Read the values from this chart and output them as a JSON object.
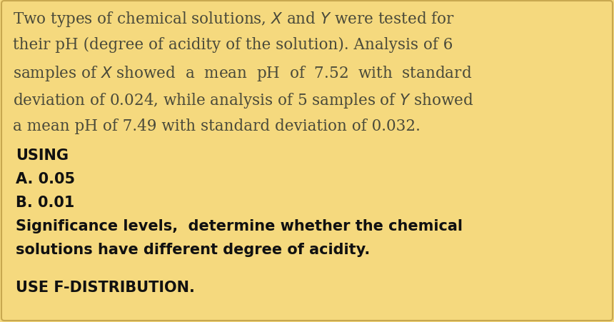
{
  "background_color": "#F5D97E",
  "border_color": "#C8A850",
  "text_color": "#4a4a3a",
  "bold_color": "#111111",
  "para_lines": [
    "Two types of chemical solutions, $\\it{X}$ and $\\it{Y}$ were tested for",
    "their pH (degree of acidity of the solution). Analysis of 6",
    "samples of $\\it{X}$ showed  a  mean  pH  of  7.52  with  standard",
    "deviation of 0.024, while analysis of 5 samples of $\\it{Y}$ showed",
    "a mean pH of 7.49 with standard deviation of 0.032."
  ],
  "using_label": "USING",
  "option_a": "A. 0.05",
  "option_b": "B. 0.01",
  "sig_line1": "Significance levels,  determine whether the chemical",
  "sig_line2": "solutions have different degree of acidity.",
  "footer": "USE F-DISTRIBUTION.",
  "figsize": [
    8.6,
    4.52
  ],
  "dpi": 100
}
